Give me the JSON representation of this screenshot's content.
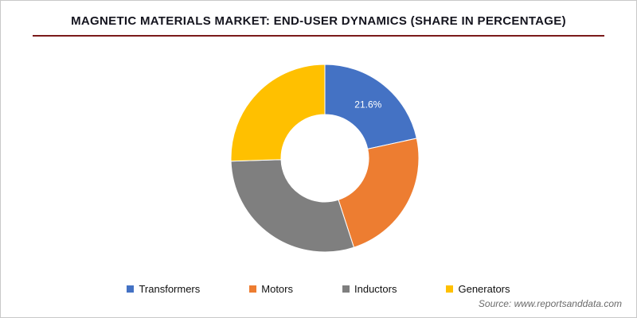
{
  "header": {
    "title": "MAGNETIC MATERIALS MARKET: END-USER DYNAMICS (SHARE IN PERCENTAGE)"
  },
  "chart_data": {
    "type": "pie",
    "subtype": "donut",
    "title": "MAGNETIC MATERIALS MARKET: END-USER DYNAMICS (SHARE IN PERCENTAGE)",
    "categories": [
      "Transformers",
      "Motors",
      "Inductors",
      "Generators"
    ],
    "values": [
      21.6,
      23.4,
      29.5,
      25.5
    ],
    "data_labels": [
      "21.6%",
      null,
      null,
      null
    ],
    "colors": [
      "#4472C4",
      "#ED7D31",
      "#7F7F7F",
      "#FFC000"
    ],
    "start_angle": 0,
    "inner_radius_ratio": 0.47,
    "legend_position": "bottom",
    "label_color": "#ffffff"
  },
  "footer": {
    "source": "Source: www.reportsanddata.com"
  }
}
